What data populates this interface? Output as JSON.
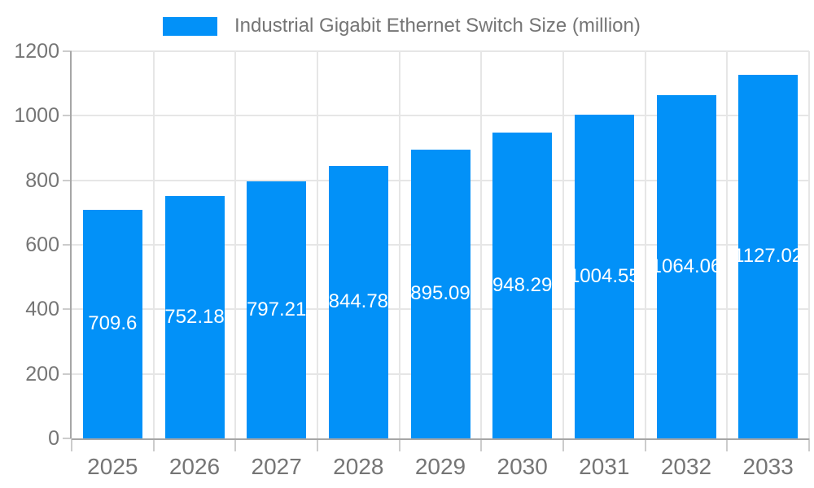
{
  "colors": {
    "bar": "#0291f8",
    "axis_text": "#757575",
    "bar_label_text": "#ffffff",
    "gridline": "#e6e6e6",
    "axis_line": "#a6a6a6",
    "tick": "#cccccc",
    "background": "#ffffff"
  },
  "legend": {
    "label": "Industrial Gigabit Ethernet Switch Size (million)"
  },
  "chart_data": {
    "type": "bar",
    "title": "Industrial Gigabit Ethernet Switch Size (million)",
    "categories": [
      "2025",
      "2026",
      "2027",
      "2028",
      "2029",
      "2030",
      "2031",
      "2032",
      "2033"
    ],
    "values": [
      709.6,
      752.18,
      797.21,
      844.78,
      895.09,
      948.29,
      1004.55,
      1064.06,
      1127.02
    ],
    "xlabel": "",
    "ylabel": "",
    "ylim": [
      0,
      1200
    ],
    "yticks": [
      0,
      200,
      400,
      600,
      800,
      1000,
      1200
    ],
    "grid": true,
    "legend_position": "top",
    "bar_value_labels": true
  }
}
